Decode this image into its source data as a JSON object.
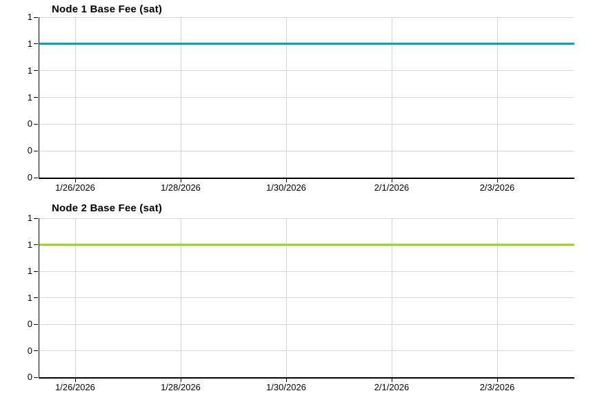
{
  "colors": {
    "grid": "#d4d4d4",
    "axis": "#000000",
    "text": "#000000",
    "node1_line": "#1a99a9",
    "node2_line": "#9cd044"
  },
  "chart_data": [
    {
      "type": "line",
      "title": "Node 1 Base Fee (sat)",
      "series": [
        {
          "name": "Node 1 Base Fee",
          "color": "#1a99a9",
          "value": 1
        }
      ],
      "x_tick_labels": [
        "1/26/2026",
        "1/28/2026",
        "1/30/2026",
        "2/1/2026",
        "2/3/2026"
      ],
      "y_tick_labels": [
        "1",
        "1",
        "1",
        "1",
        "0",
        "0",
        "0"
      ],
      "ylim": [
        0,
        1.2
      ],
      "y_tick_step": 0.2,
      "value_tick_index_from_top": 1,
      "grid": true,
      "legend": "none"
    },
    {
      "type": "line",
      "title": "Node 2 Base Fee (sat)",
      "series": [
        {
          "name": "Node 2 Base Fee",
          "color": "#9cd044",
          "value": 1
        }
      ],
      "x_tick_labels": [
        "1/26/2026",
        "1/28/2026",
        "1/30/2026",
        "2/1/2026",
        "2/3/2026"
      ],
      "y_tick_labels": [
        "1",
        "1",
        "1",
        "1",
        "0",
        "0",
        "0"
      ],
      "ylim": [
        0,
        1.2
      ],
      "y_tick_step": 0.2,
      "value_tick_index_from_top": 1,
      "grid": true,
      "legend": "none"
    }
  ]
}
